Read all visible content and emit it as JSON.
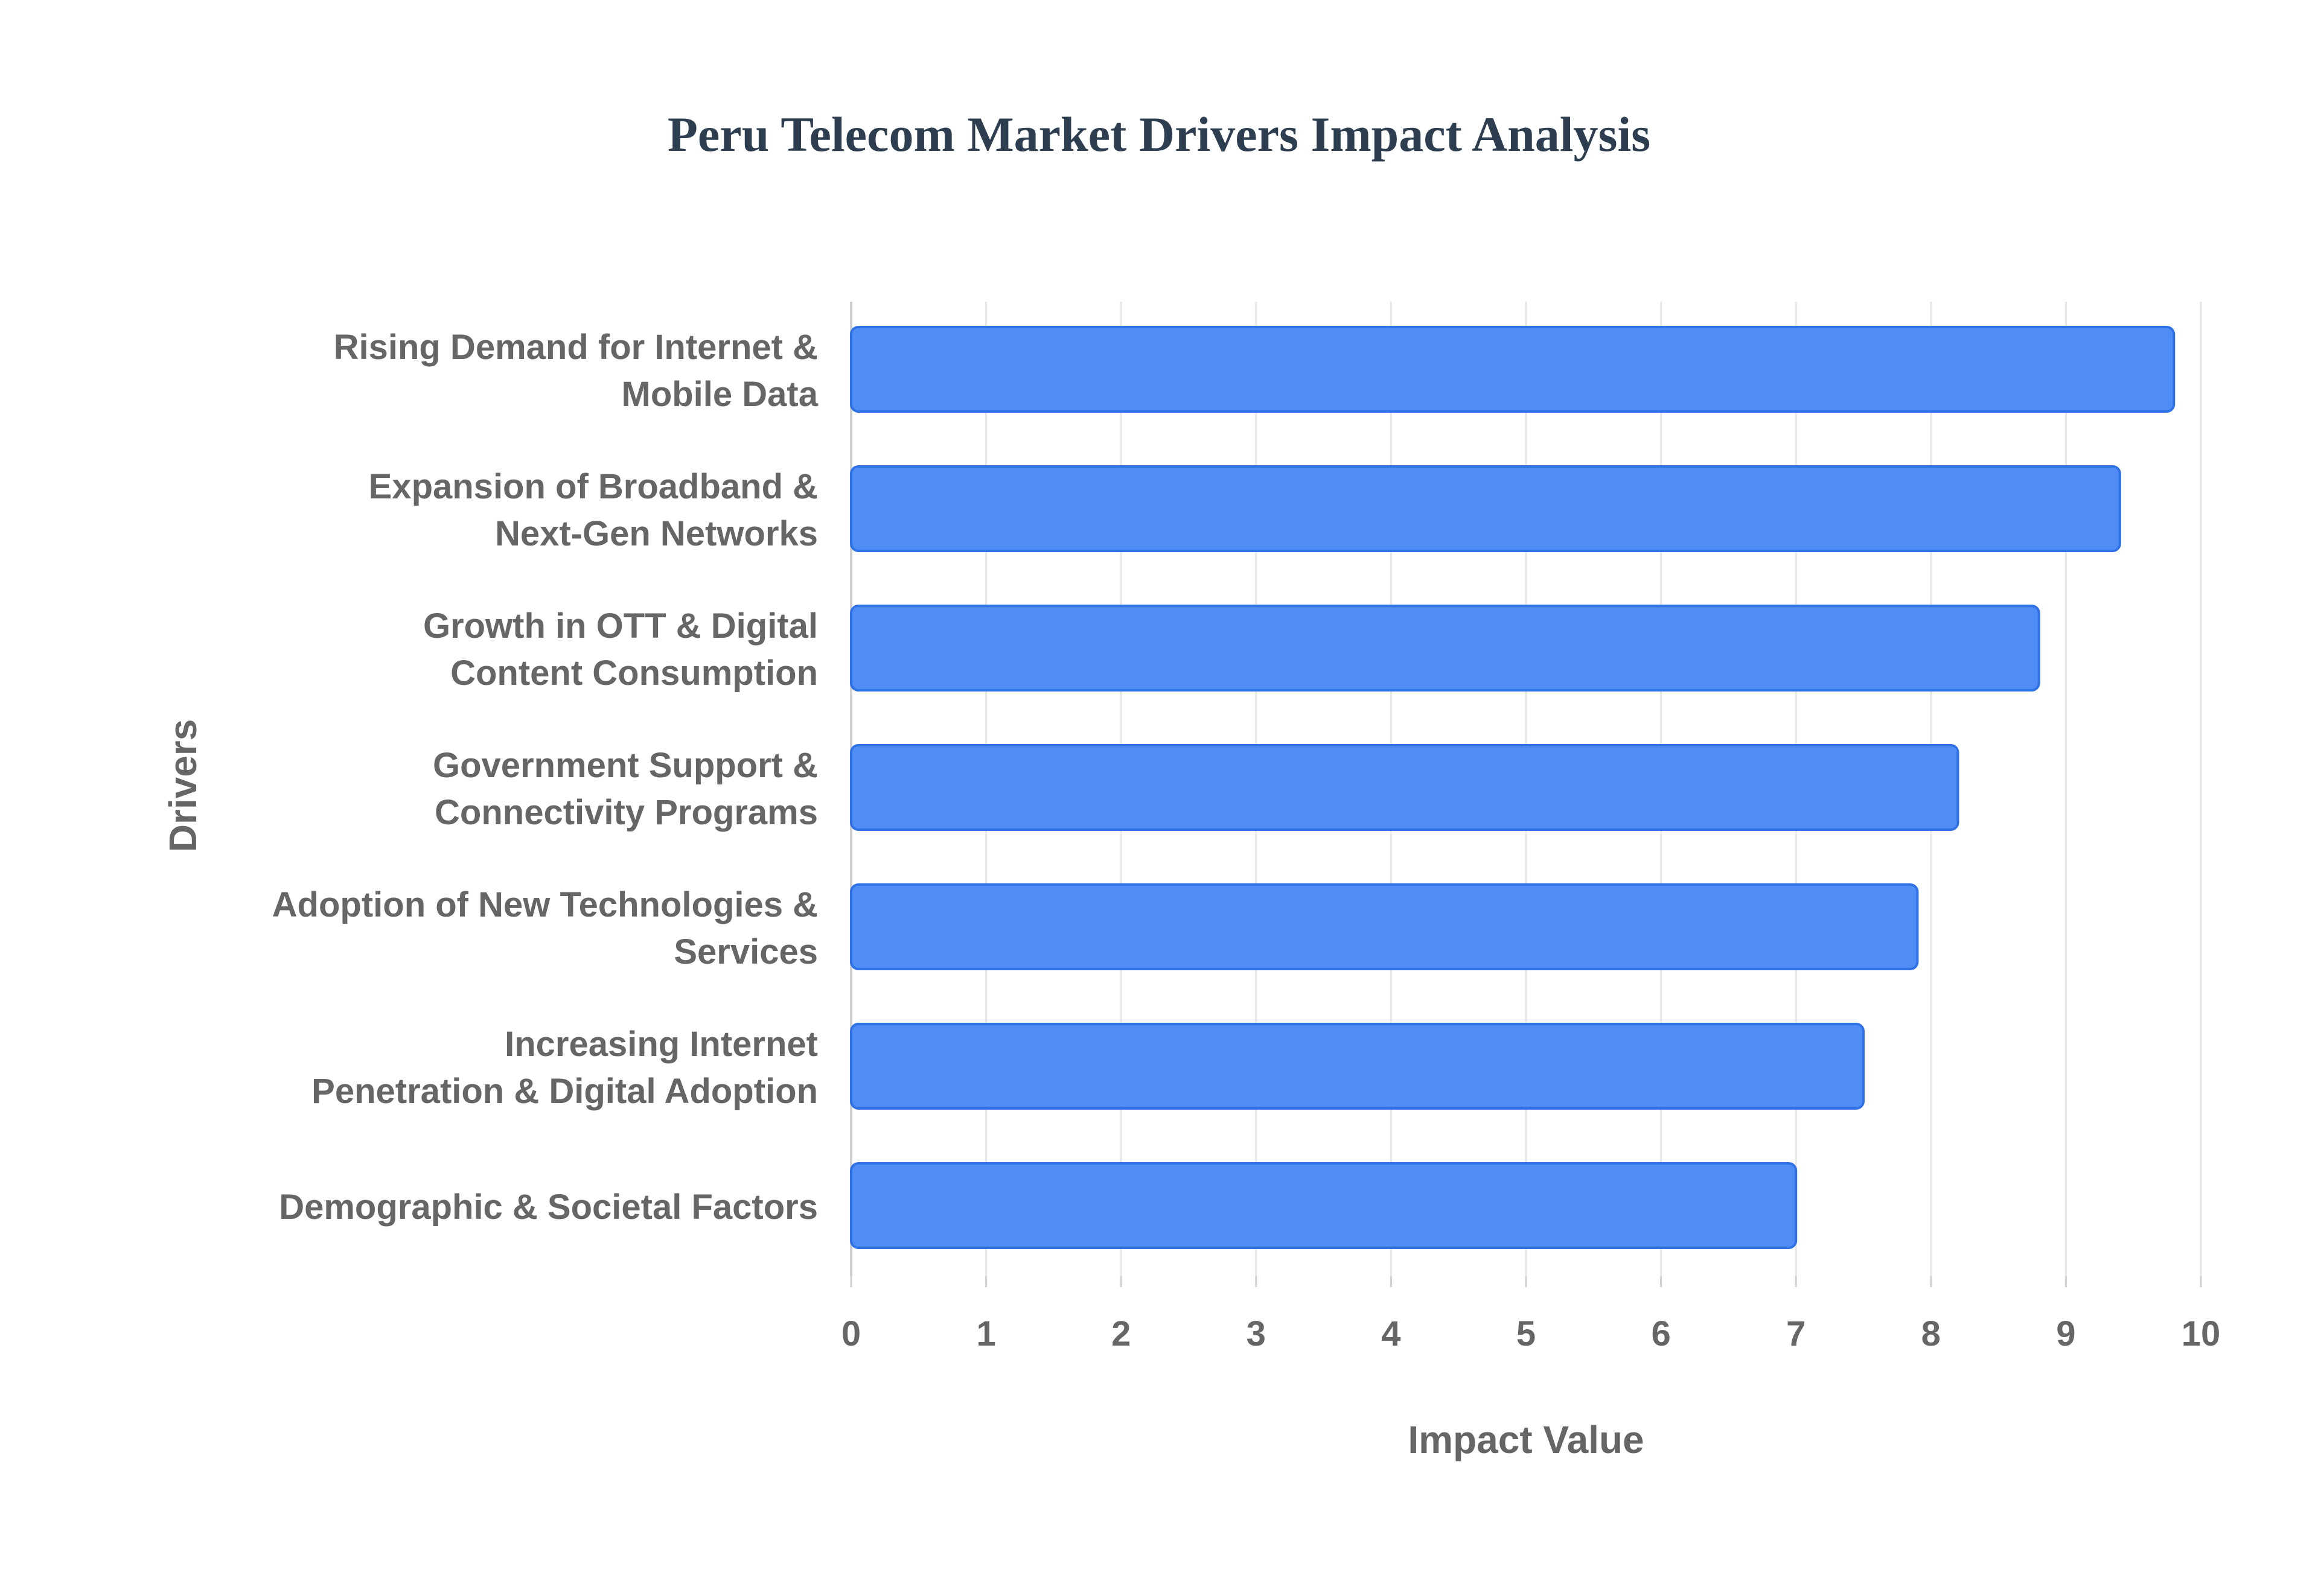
{
  "chart_data": {
    "type": "bar",
    "orientation": "horizontal",
    "title": "Peru Telecom Market Drivers Impact Analysis",
    "xlabel": "Impact Value",
    "ylabel": "Drivers",
    "xlim": [
      0,
      10
    ],
    "x_ticks": [
      0,
      1,
      2,
      3,
      4,
      5,
      6,
      7,
      8,
      9,
      10
    ],
    "grid": true,
    "legend": "none",
    "categories": [
      [
        "Rising Demand for Internet &",
        "Mobile Data"
      ],
      [
        "Expansion of Broadband &",
        "Next-Gen Networks"
      ],
      [
        "Growth in OTT & Digital",
        "Content Consumption"
      ],
      [
        "Government Support &",
        "Connectivity Programs"
      ],
      [
        "Adoption of New Technologies &",
        "Services"
      ],
      [
        "Increasing Internet",
        "Penetration & Digital Adoption"
      ],
      [
        "Demographic & Societal Factors"
      ]
    ],
    "values": [
      9.8,
      9.4,
      8.8,
      8.2,
      7.9,
      7.5,
      7.0
    ],
    "colors": {
      "bar_fill": "#4f8df5",
      "bar_stroke": "#2f72e8",
      "title": "#2c3e50",
      "label": "#666666",
      "grid": "#e6e6e6",
      "axis": "#d0d0d0"
    }
  }
}
